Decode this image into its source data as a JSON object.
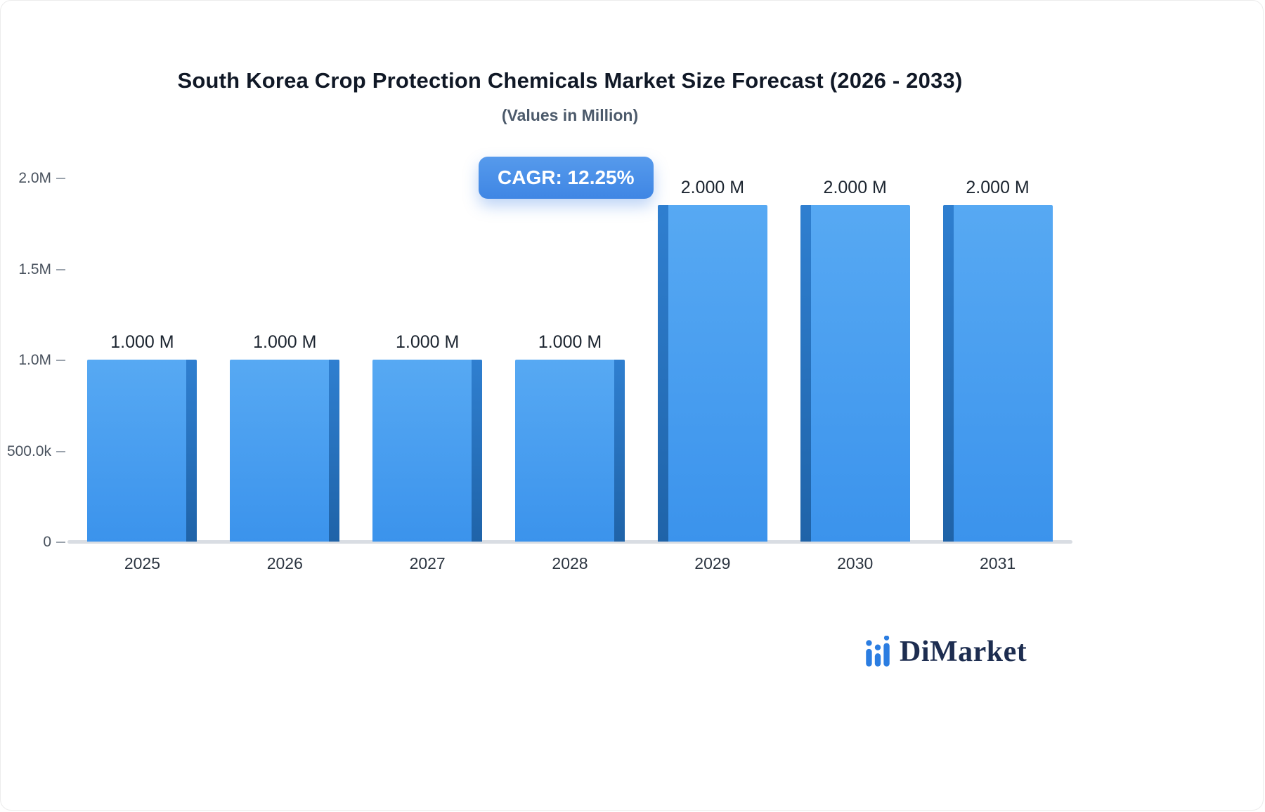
{
  "title": "South Korea Crop Protection Chemicals Market Size Forecast (2026 - 2033)",
  "subtitle": "(Values in Million)",
  "cagr_label": "CAGR: 12.25%",
  "logo_text": "DiMarket",
  "colors": {
    "bar_main": "#3E9BF0",
    "bar_side": "#1F63A8",
    "badge_blue": "#4A90E8",
    "logo_blue": "#2B7DE1",
    "logo_navy": "#1D2D50",
    "axis_line": "#D9DDE3"
  },
  "chart_data": {
    "type": "bar",
    "categories": [
      "2025",
      "2026",
      "2027",
      "2028",
      "2029",
      "2030",
      "2031"
    ],
    "values": [
      1000000,
      1000000,
      1000000,
      1000000,
      2000000,
      2000000,
      2000000
    ],
    "value_labels": [
      "1.000 M",
      "1.000 M",
      "1.000 M",
      "1.000 M",
      "2.000 M",
      "2.000 M",
      "2.000 M"
    ],
    "title": "South Korea Crop Protection Chemicals Market Size Forecast (2026 - 2033)",
    "subtitle": "(Values in Million)",
    "xlabel": "",
    "ylabel": "",
    "ylim": [
      0,
      2000000
    ],
    "yticks": [
      {
        "value": 2000000,
        "label": "2.0M"
      },
      {
        "value": 1500000,
        "label": "1.5M"
      },
      {
        "value": 1000000,
        "label": "1.0M"
      },
      {
        "value": 500000,
        "label": "500.0k"
      },
      {
        "value": 0,
        "label": "0"
      }
    ],
    "annotation": "CAGR: 12.25%",
    "grid": false,
    "legend": false
  }
}
